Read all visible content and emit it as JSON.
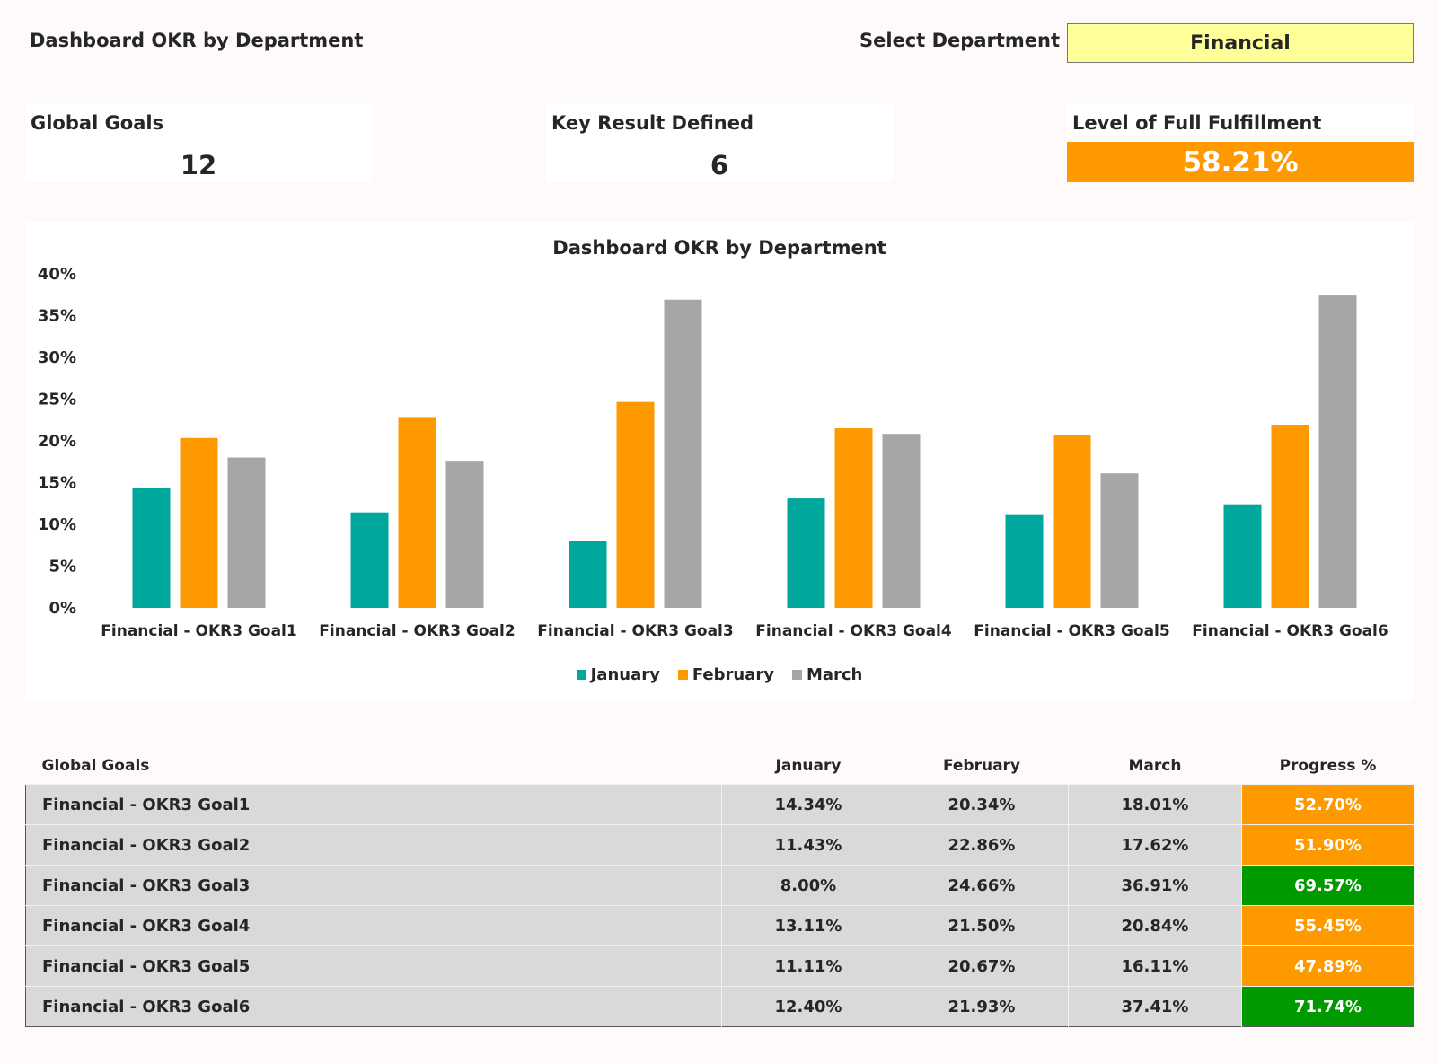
{
  "header": {
    "title": "Dashboard OKR by Department",
    "select_label": "Select Department",
    "select_value": "Financial"
  },
  "kpis": {
    "global_goals_label": "Global Goals",
    "global_goals_value": "12",
    "key_result_label": "Key Result Defined",
    "key_result_value": "6",
    "fulfillment_label": "Level of Full Fulfillment",
    "fulfillment_value": "58.21%",
    "fulfillment_color": "#ff9900"
  },
  "colors": {
    "january": "#00a79d",
    "february": "#ff9900",
    "march": "#a6a6a6",
    "progress_orange": "#ff9900",
    "progress_green": "#009900"
  },
  "chart_data": {
    "type": "bar",
    "title": "Dashboard OKR by Department",
    "categories": [
      "Financial - OKR3 Goal1",
      "Financial - OKR3 Goal2",
      "Financial - OKR3 Goal3",
      "Financial - OKR3 Goal4",
      "Financial - OKR3 Goal5",
      "Financial - OKR3 Goal6"
    ],
    "series": [
      {
        "name": "January",
        "color": "#00a79d",
        "values": [
          14.34,
          11.43,
          8.0,
          13.11,
          11.11,
          12.4
        ]
      },
      {
        "name": "February",
        "color": "#ff9900",
        "values": [
          20.34,
          22.86,
          24.66,
          21.5,
          20.67,
          21.93
        ]
      },
      {
        "name": "March",
        "color": "#a6a6a6",
        "values": [
          18.01,
          17.62,
          36.91,
          20.84,
          16.11,
          37.41
        ]
      }
    ],
    "ylim": [
      0,
      40
    ],
    "yticks": [
      "0%",
      "5%",
      "10%",
      "15%",
      "20%",
      "25%",
      "30%",
      "35%",
      "40%"
    ],
    "grid": false,
    "legend": "bottom"
  },
  "table": {
    "headers": [
      "Global Goals",
      "January",
      "February",
      "March",
      "Progress %"
    ],
    "rows": [
      {
        "goal": "Financial - OKR3 Goal1",
        "jan": "14.34%",
        "feb": "20.34%",
        "mar": "18.01%",
        "progress": "52.70%",
        "status": "orange"
      },
      {
        "goal": "Financial - OKR3 Goal2",
        "jan": "11.43%",
        "feb": "22.86%",
        "mar": "17.62%",
        "progress": "51.90%",
        "status": "orange"
      },
      {
        "goal": "Financial - OKR3 Goal3",
        "jan": "8.00%",
        "feb": "24.66%",
        "mar": "36.91%",
        "progress": "69.57%",
        "status": "green"
      },
      {
        "goal": "Financial - OKR3 Goal4",
        "jan": "13.11%",
        "feb": "21.50%",
        "mar": "20.84%",
        "progress": "55.45%",
        "status": "orange"
      },
      {
        "goal": "Financial - OKR3 Goal5",
        "jan": "11.11%",
        "feb": "20.67%",
        "mar": "16.11%",
        "progress": "47.89%",
        "status": "orange"
      },
      {
        "goal": "Financial - OKR3 Goal6",
        "jan": "12.40%",
        "feb": "21.93%",
        "mar": "37.41%",
        "progress": "71.74%",
        "status": "green"
      }
    ]
  }
}
